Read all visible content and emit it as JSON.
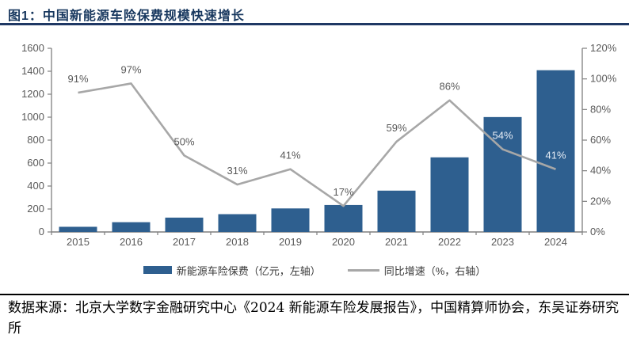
{
  "page": {
    "title": "图1：中国新能源车险保费规模快速增长"
  },
  "chart_data": {
    "type": "bar+line",
    "categories": [
      "2015",
      "2016",
      "2017",
      "2018",
      "2019",
      "2020",
      "2021",
      "2022",
      "2023",
      "2024"
    ],
    "series": [
      {
        "name": "新能源车险保费（亿元，左轴）",
        "type": "bar",
        "axis": "left",
        "values": [
          45,
          85,
          125,
          155,
          205,
          235,
          360,
          650,
          1001,
          1409
        ]
      },
      {
        "name": "同比增速（%，右轴）",
        "type": "line",
        "axis": "right",
        "values": [
          91,
          97,
          50,
          31,
          41,
          17,
          59,
          86,
          54,
          41
        ],
        "point_labels": [
          {
            "text": "91%",
            "light": false
          },
          {
            "text": "97%",
            "light": false
          },
          {
            "text": "50%",
            "light": false
          },
          {
            "text": "31%",
            "light": false
          },
          {
            "text": "41%",
            "light": false
          },
          {
            "text": "17%",
            "light": false
          },
          {
            "text": "59%",
            "light": false
          },
          {
            "text": "86%",
            "light": false
          },
          {
            "text": "54%",
            "light": true
          },
          {
            "text": "41%",
            "light": true
          }
        ]
      }
    ],
    "left_axis": {
      "min": 0,
      "max": 1600,
      "step": 200,
      "tick_labels": [
        "0",
        "200",
        "400",
        "600",
        "800",
        "1000",
        "1200",
        "1400",
        "1600"
      ]
    },
    "right_axis": {
      "min": 0,
      "max": 120,
      "step": 20,
      "tick_labels": [
        "0%",
        "20%",
        "40%",
        "60%",
        "80%",
        "100%",
        "120%"
      ]
    },
    "grid": false,
    "legend_position": "bottom",
    "colors": {
      "bar": "#2E5F8F",
      "line": "#A7A7A7",
      "axis": "#7F7F7F",
      "tick_label": "#595959",
      "point_label_dark": "#595959",
      "point_label_light": "#E8EEF6",
      "title_accent": "#17375E"
    }
  },
  "legend": {
    "items": [
      {
        "label": "新能源车险保费（亿元，左轴）",
        "swatch": "bar"
      },
      {
        "label": "同比增速（%，右轴）",
        "swatch": "line"
      }
    ]
  },
  "source": {
    "label": "数据来源：北京大学数字金融研究中心《2024 新能源车险发展报告》，中国精算师协会，东吴证券研究所"
  }
}
